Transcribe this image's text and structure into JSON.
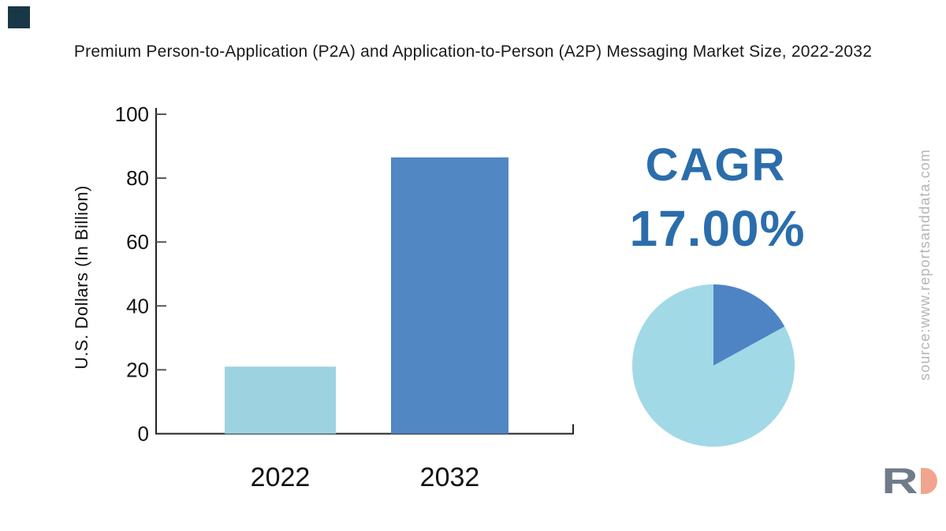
{
  "title": "Premium Person-to-Application (P2A) and Application-to-Person (A2P) Messaging Market Size, 2022-2032",
  "source_watermark": "source:www.reportsanddata.com",
  "cagr": {
    "label": "CAGR",
    "value": "17.00%",
    "percent": 17,
    "color": "#2b6dab"
  },
  "brand": {
    "corner_square_color": "#183747",
    "logo": {
      "r_text": "R",
      "r_color": "#6f7b88",
      "d_color": "#f2a58e"
    }
  },
  "chart_data": [
    {
      "type": "bar",
      "title": "Premium Person-to-Application (P2A) and Application-to-Person (A2P) Messaging Market Size, 2022-2032",
      "categories": [
        "2022",
        "2032"
      ],
      "values": [
        21,
        86.5
      ],
      "xlabel": "",
      "ylabel": "U.S. Dollars (In Billion)",
      "ylim": [
        0,
        100
      ],
      "yticks": [
        0,
        20,
        40,
        60,
        80,
        100
      ],
      "bar_colors": [
        "#9dd3e0",
        "#5187c3"
      ],
      "axis_color": "#222222",
      "tick_color": "#555555",
      "text_color": "#111111",
      "grid": false,
      "legend": "none"
    },
    {
      "type": "pie",
      "title": "CAGR share depiction",
      "labels": [
        "CAGR 17.00%",
        "remainder"
      ],
      "values": [
        17,
        83
      ],
      "colors": [
        "#4e84c4",
        "#a2d9e6"
      ],
      "start_angle": "12 o'clock, clockwise",
      "legend": "none"
    }
  ]
}
